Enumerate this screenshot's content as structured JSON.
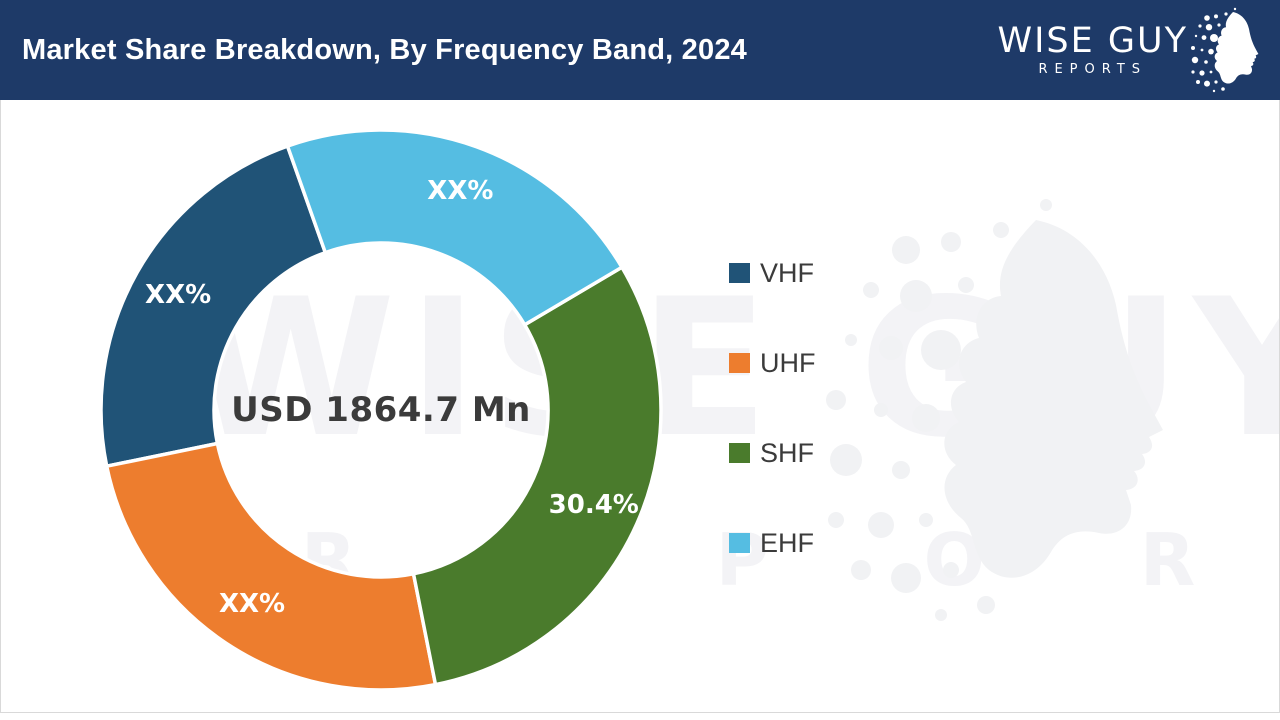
{
  "header": {
    "title": "Market Share Breakdown, By Frequency Band, 2024",
    "logo": {
      "name_line": "WISE GUY",
      "sub_line": "REPORTS"
    }
  },
  "chart_data": {
    "type": "donut",
    "title": "Market Share Breakdown, By Frequency Band, 2024",
    "center_label": "USD 1864.7 Mn",
    "total_value_usd_mn": 1864.7,
    "start_angle_deg": 109.5,
    "direction": "counterclockwise",
    "legend_position": "right",
    "segments": [
      {
        "name": "VHF",
        "display_label": "XX%",
        "value_pct_est": 22.8,
        "color": "#205377"
      },
      {
        "name": "UHF",
        "display_label": "XX%",
        "value_pct_est": 24.9,
        "color": "#ed7d2e"
      },
      {
        "name": "SHF",
        "display_label": "30.4%",
        "value_pct_est": 30.4,
        "color": "#4a7b2c"
      },
      {
        "name": "EHF",
        "display_label": "XX%",
        "value_pct_est": 21.9,
        "color": "#55bde2"
      }
    ]
  },
  "watermark": {
    "line1": "WISE GUY",
    "line2": "R E P O R T S"
  },
  "colors": {
    "header_bg": "#1e3a68",
    "card_border": "#d9d9d9",
    "center_text": "#3b3b3b",
    "legend_text": "#3b3b3b",
    "slice_label_text": "#ffffff",
    "watermark": "#f1f2f4"
  }
}
